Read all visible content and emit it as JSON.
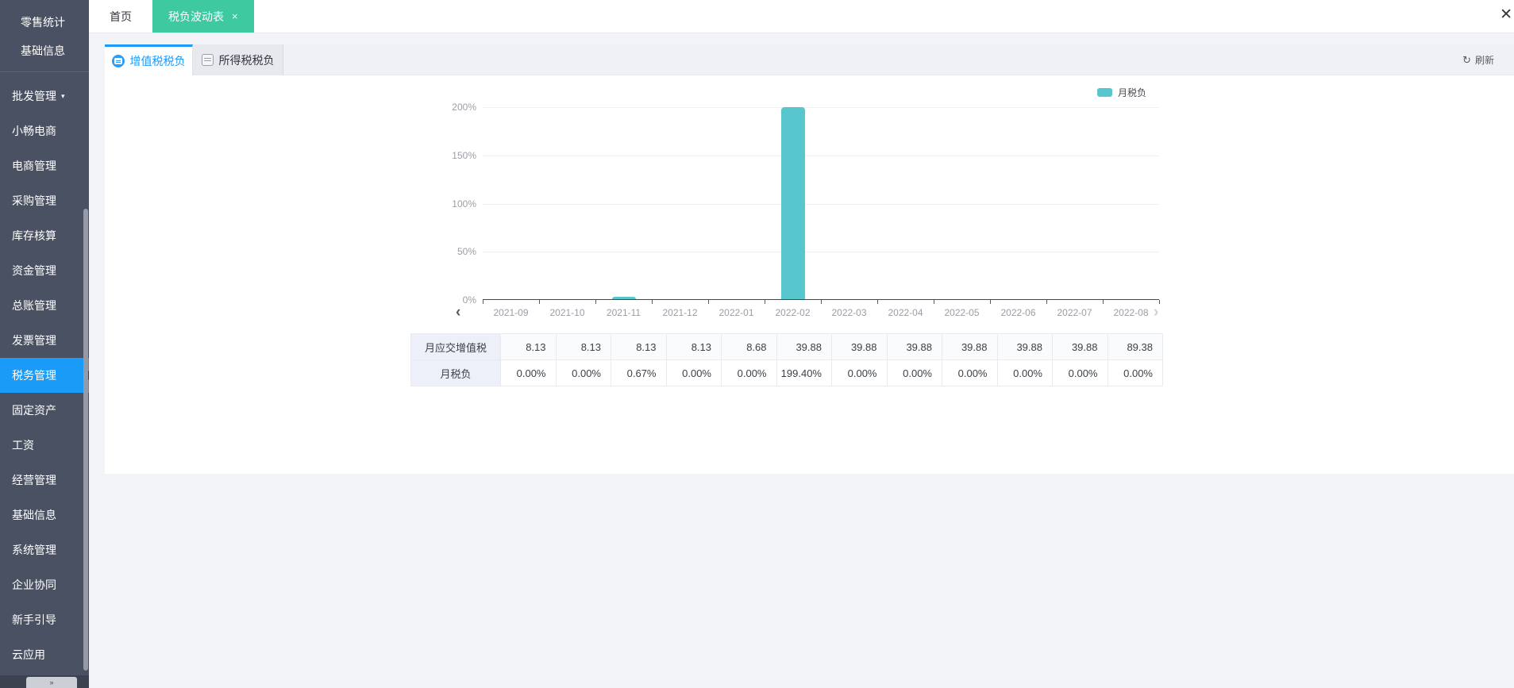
{
  "window": {
    "close_icon": "✕"
  },
  "sidebar": {
    "top_items": [
      "零售统计",
      "基础信息"
    ],
    "menu_items": [
      {
        "label": "批发管理",
        "has_arrow": true,
        "arrow_icon": "▾"
      },
      {
        "label": "小畅电商"
      },
      {
        "label": "电商管理"
      },
      {
        "label": "采购管理"
      },
      {
        "label": "库存核算"
      },
      {
        "label": "资金管理"
      },
      {
        "label": "总账管理"
      },
      {
        "label": "发票管理"
      },
      {
        "label": "税务管理",
        "active": true
      },
      {
        "label": "固定资产"
      },
      {
        "label": "工资"
      },
      {
        "label": "经营管理"
      },
      {
        "label": "基础信息"
      },
      {
        "label": "系统管理"
      },
      {
        "label": "企业协同"
      },
      {
        "label": "新手引导"
      },
      {
        "label": "云应用"
      }
    ],
    "collapse_button": "»"
  },
  "tabbar": {
    "tabs": [
      {
        "label": "首页",
        "active": false
      },
      {
        "label": "税负波动表",
        "active": true,
        "closable": true
      }
    ],
    "tab_close_icon": "×"
  },
  "panel": {
    "subtabs": [
      {
        "label": "增值税税负",
        "active": true,
        "icon": "vat-badge-icon"
      },
      {
        "label": "所得税税负",
        "active": false,
        "icon": "income-tax-badge-icon"
      }
    ],
    "refresh_label": "刷新",
    "refresh_icon": "↻"
  },
  "chart_data": {
    "type": "bar",
    "title": "",
    "categories": [
      "2021-09",
      "2021-10",
      "2021-11",
      "2021-12",
      "2022-01",
      "2022-02",
      "2022-03",
      "2022-04",
      "2022-05",
      "2022-06",
      "2022-07",
      "2022-08"
    ],
    "series": [
      {
        "name": "月税负",
        "values": [
          0,
          0,
          0.67,
          0,
          0,
          199.4,
          0,
          0,
          0,
          0,
          0,
          0
        ]
      }
    ],
    "xlabel": "",
    "ylabel": "",
    "ylim": [
      0,
      200
    ],
    "yticks": [
      {
        "label": "0%",
        "value": 0
      },
      {
        "label": "50%",
        "value": 50
      },
      {
        "label": "100%",
        "value": 100
      },
      {
        "label": "150%",
        "value": 150
      },
      {
        "label": "200%",
        "value": 200
      }
    ],
    "grid": true,
    "legend_position": "top-right",
    "bar_color": "#58c7cd",
    "nav_prev": "‹",
    "nav_next": "›"
  },
  "table": {
    "rows": [
      {
        "header": "月应交增值税",
        "values": [
          "8.13",
          "8.13",
          "8.13",
          "8.13",
          "8.68",
          "39.88",
          "39.88",
          "39.88",
          "39.88",
          "39.88",
          "39.88",
          "89.38"
        ]
      },
      {
        "header": "月税负",
        "values": [
          "0.00%",
          "0.00%",
          "0.67%",
          "0.00%",
          "0.00%",
          "199.40%",
          "0.00%",
          "0.00%",
          "0.00%",
          "0.00%",
          "0.00%",
          "0.00%"
        ]
      }
    ]
  },
  "colors": {
    "sidebar_bg": "#4a5162",
    "sidebar_active_bg": "#1b9bf8",
    "active_tab_green": "#3fc9a0",
    "accent_blue": "#1b9bf8",
    "bar_teal": "#58c7cd",
    "content_bg": "#f2f4f8"
  }
}
